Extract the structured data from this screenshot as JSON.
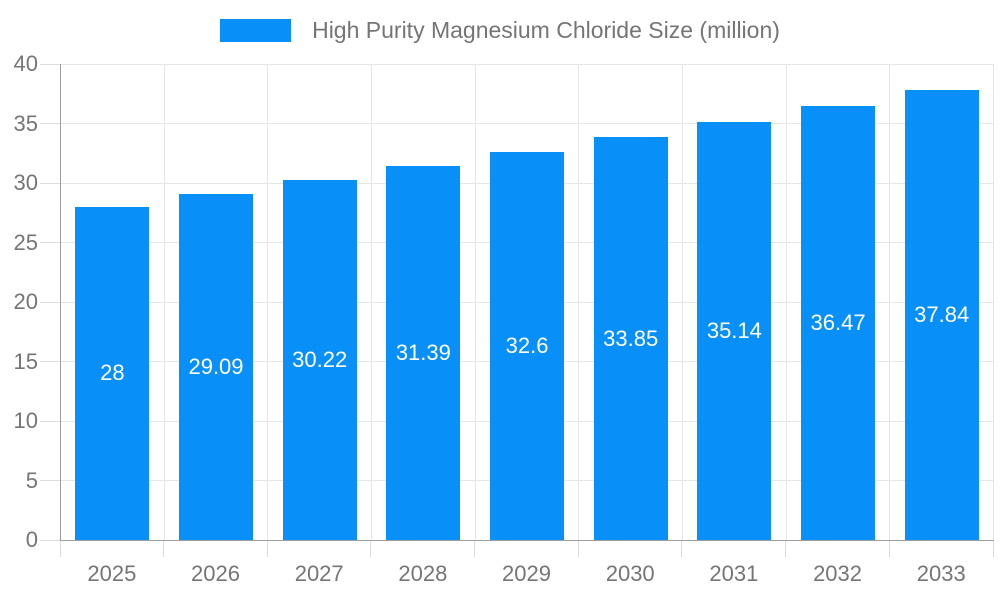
{
  "page": {
    "background_color": "#ffffff"
  },
  "legend": {
    "position": "top",
    "swatch_color": "#0890F8"
  },
  "chart_data": {
    "type": "bar",
    "title": "High Purity Magnesium Chloride Size (million)",
    "categories": [
      "2025",
      "2026",
      "2027",
      "2028",
      "2029",
      "2030",
      "2031",
      "2032",
      "2033"
    ],
    "series": [
      {
        "name": "High Purity Magnesium Chloride Size (million)",
        "values": [
          28,
          29.09,
          30.22,
          31.39,
          32.6,
          33.85,
          35.14,
          36.47,
          37.84
        ]
      }
    ],
    "value_labels": [
      "28",
      "29.09",
      "30.22",
      "31.39",
      "32.6",
      "33.85",
      "35.14",
      "36.47",
      "37.84"
    ],
    "xlabel": "",
    "ylabel": "",
    "ylim": [
      0,
      40
    ],
    "yticks": [
      0,
      5,
      10,
      15,
      20,
      25,
      30,
      35,
      40
    ],
    "grid": true,
    "legend_position": "top",
    "bar_color": "#0890F8",
    "value_label_color": "#ffffff",
    "axis_text_color": "#757575",
    "grid_color": "#e6e6e6",
    "axis_line_color": "#9e9e9e",
    "tick_color": "#dcdcdc"
  }
}
